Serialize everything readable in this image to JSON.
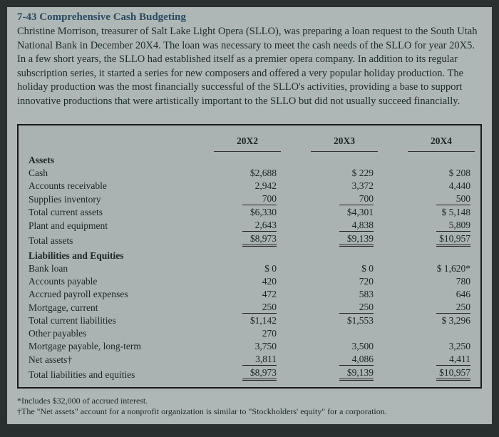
{
  "heading": {
    "number": "7-43",
    "title": "Comprehensive Cash Budgeting"
  },
  "intro": "Christine Morrison, treasurer of Salt Lake Light Opera (SLLO), was preparing a loan request to the South Utah National Bank in December 20X4. The loan was necessary to meet the cash needs of the SLLO for year 20X5. In a few short years, the SLLO had established itself as a premier opera company. In addition to its regular subscription series, it started a series for new composers and offered a very popular holiday production. The holiday production was the most financially successful of the SLLO's activities, providing a base to support innovative productions that were artistically important to the SLLO but did not usually succeed financially.",
  "table": {
    "years": [
      "20X2",
      "20X3",
      "20X4"
    ],
    "sections": {
      "assets_label": "Assets",
      "liab_label": "Liabilities and Equities"
    },
    "rows": [
      {
        "label": "Cash",
        "v": [
          "$2,688",
          "$  229",
          "$    208"
        ]
      },
      {
        "label": "Accounts receivable",
        "v": [
          "2,942",
          "3,372",
          "4,440"
        ]
      },
      {
        "label": "Supplies inventory",
        "v": [
          "700",
          "700",
          "500"
        ],
        "rule": "under"
      },
      {
        "label": "Total current assets",
        "v": [
          "$6,330",
          "$4,301",
          "$ 5,148"
        ]
      },
      {
        "label": "Plant and equipment",
        "v": [
          "2,643",
          "4,838",
          "5,809"
        ],
        "rule": "under"
      },
      {
        "label": "Total assets",
        "v": [
          "$8,973",
          "$9,139",
          "$10,957"
        ],
        "rule": "dbl"
      }
    ],
    "rows2": [
      {
        "label": "Bank loan",
        "v": [
          "$       0",
          "$       0",
          "$ 1,620*"
        ]
      },
      {
        "label": "Accounts payable",
        "v": [
          "420",
          "720",
          "780"
        ]
      },
      {
        "label": "Accrued payroll expenses",
        "v": [
          "472",
          "583",
          "646"
        ]
      },
      {
        "label": "Mortgage, current",
        "v": [
          "250",
          "250",
          "250"
        ],
        "rule": "under"
      },
      {
        "label": "Total current liabilities",
        "v": [
          "$1,142",
          "$1,553",
          "$ 3,296"
        ]
      },
      {
        "label": "Other payables",
        "v": [
          "270",
          "",
          ""
        ]
      },
      {
        "label": "Mortgage payable, long-term",
        "v": [
          "3,750",
          "3,500",
          "3,250"
        ]
      },
      {
        "label": "Net assets†",
        "v": [
          "3,811",
          "4,086",
          "4,411"
        ],
        "rule": "under"
      },
      {
        "label": "Total liabilities and equities",
        "v": [
          "$8,973",
          "$9,139",
          "$10,957"
        ],
        "rule": "dbl"
      }
    ]
  },
  "footnotes": {
    "f1": "*Includes $32,000 of accrued interest.",
    "f2": "†The \"Net assets\" account for a nonprofit organization is similar to \"Stockholders' equity\" for a corporation."
  }
}
